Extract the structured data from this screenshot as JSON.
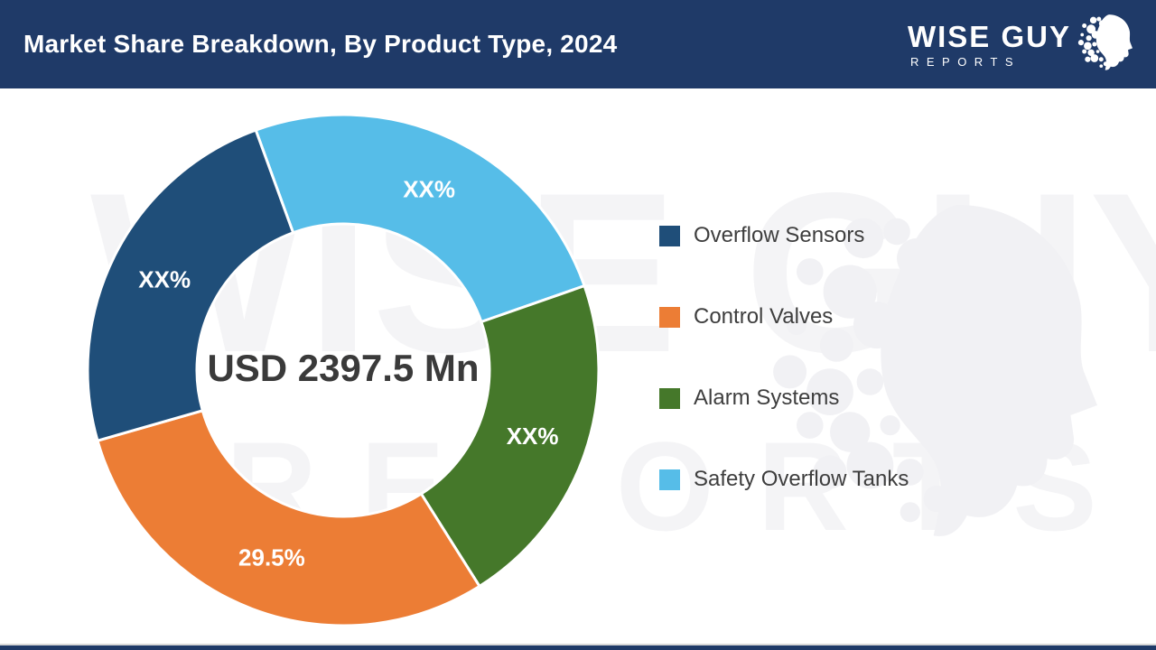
{
  "header": {
    "title": "Market Share Breakdown, By Product Type, 2024",
    "logo": {
      "line1": "WISE GUY",
      "line2": "REPORTS"
    }
  },
  "watermark": {
    "line1": "WISE GUY",
    "line2": "REPORTS"
  },
  "chart_data": {
    "type": "donut",
    "title": "Market Share Breakdown, By Product Type, 2024",
    "center_label": "USD 2397.5 Mn",
    "start_angle_deg": -20,
    "outer_radius": 283,
    "inner_radius": 162,
    "label_radius": 222,
    "legend_position": "right",
    "segments": [
      {
        "name": "Safety Overflow Tanks",
        "label": "XX%",
        "percent": 25.2,
        "color": "#56BDE8"
      },
      {
        "name": "Alarm Systems",
        "label": "XX%",
        "percent": 21.4,
        "color": "#45782A"
      },
      {
        "name": "Control Valves",
        "label": "29.5%",
        "percent": 29.5,
        "color": "#EC7D35"
      },
      {
        "name": "Overflow Sensors",
        "label": "XX%",
        "percent": 23.9,
        "color": "#1F4E79"
      }
    ],
    "legend": [
      {
        "label": "Overflow Sensors",
        "color": "#1F4E79"
      },
      {
        "label": "Control Valves",
        "color": "#EC7D35"
      },
      {
        "label": "Alarm Systems",
        "color": "#45782A"
      },
      {
        "label": "Safety Overflow Tanks",
        "color": "#56BDE8"
      }
    ]
  },
  "colors": {
    "header_bg": "#1F3A68",
    "center_text": "#3A3A3A",
    "watermark": "#F4F4F6",
    "segment_gap": "#FFFFFF"
  }
}
